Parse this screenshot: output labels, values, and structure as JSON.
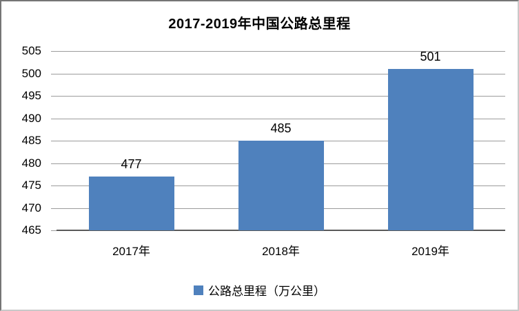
{
  "chart_data": {
    "type": "bar",
    "title": "2017-2019年中国公路总里程",
    "categories": [
      "2017年",
      "2018年",
      "2019年"
    ],
    "values": [
      477,
      485,
      501
    ],
    "series_name": "公路总里程（万公里）",
    "legend": "公路总里程（万公里）",
    "xlabel": "",
    "ylabel": "",
    "ylim": [
      465,
      505
    ],
    "ytick_step": 5,
    "yticks": [
      465,
      470,
      475,
      480,
      485,
      490,
      495,
      500,
      505
    ],
    "grid": true,
    "legend_position": "bottom",
    "bar_color": "#4f81bd",
    "data_labels_shown": true
  },
  "colors": {
    "bar": "#4f81bd",
    "gridline": "#9b9b9b",
    "axis_line": "#595959",
    "text": "#000000",
    "background": "#ffffff",
    "frame_border": "#757575"
  }
}
